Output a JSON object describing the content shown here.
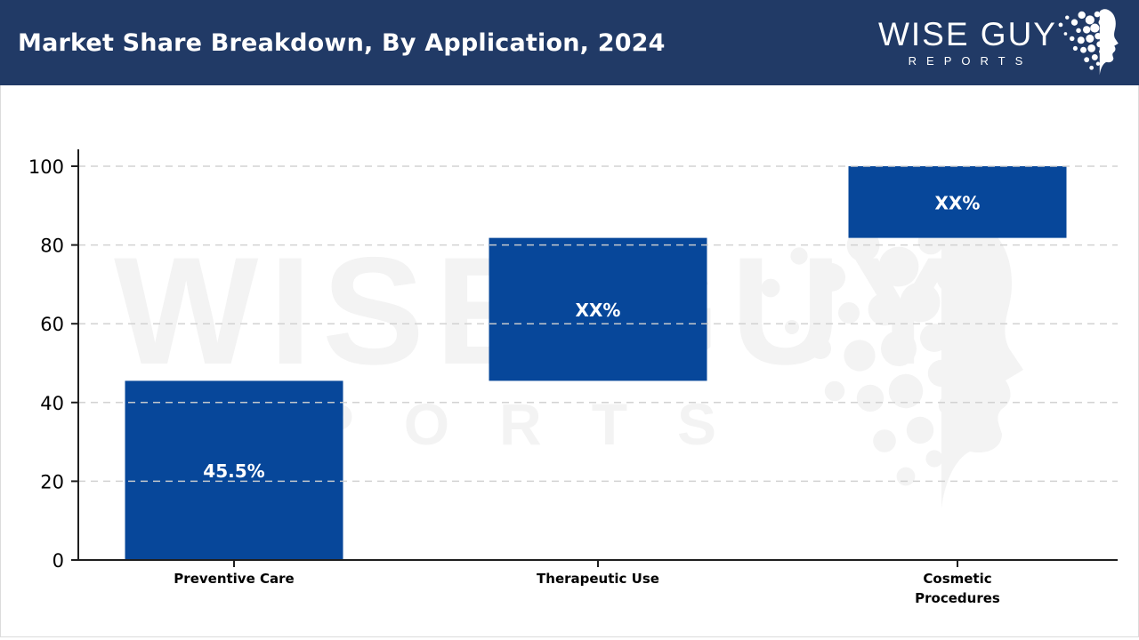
{
  "header": {
    "title": "Market Share Breakdown, By Application, 2024",
    "logo": {
      "line1": "WISE GUY",
      "line2": "REPORTS"
    }
  },
  "watermark": {
    "line1": "WISE GUY",
    "line2": "REPORTS"
  },
  "chart_data": {
    "type": "bar",
    "subtype": "waterfall-floating-bars",
    "title": "Market Share Breakdown, By Application, 2024",
    "categories": [
      "Preventive Care",
      "Therapeutic Use",
      "Cosmetic Procedures"
    ],
    "segments": [
      {
        "category": "Preventive Care",
        "start": 0,
        "end": 45.5,
        "label": "45.5%"
      },
      {
        "category": "Therapeutic Use",
        "start": 45.5,
        "end": 81.8,
        "label": "XX%"
      },
      {
        "category": "Cosmetic Procedures",
        "start": 81.8,
        "end": 100,
        "label": "XX%"
      }
    ],
    "yticks": [
      0,
      20,
      40,
      60,
      80,
      100
    ],
    "ylim": [
      0,
      100
    ],
    "xlabel": "",
    "ylabel": "",
    "grid": "horizontal-dashed",
    "legend": "none",
    "colors": {
      "bar": "#07479a",
      "bar_label": "#ffffff",
      "axis": "#1f1f1f",
      "tick_label": "#000000",
      "gridline": "#d0d0d0",
      "header_bg": "#213a66",
      "watermark": "#f3f3f3"
    }
  }
}
